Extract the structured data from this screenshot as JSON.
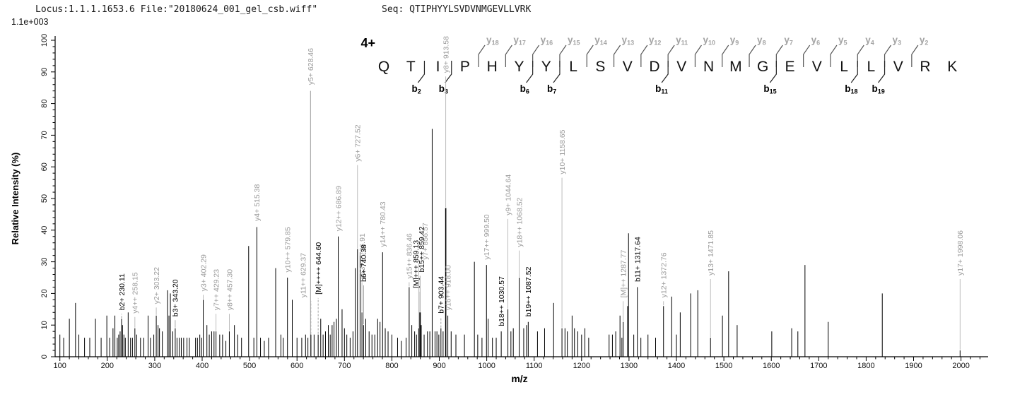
{
  "header": {
    "locus_file": "Locus:1.1.1.1653.6 File:\"20180624_001_gel_csb.wiff\"",
    "seq": "Seq: QTIPHYYLSVDVNMGEVLLVRK",
    "max_intensity": "1.1e+003"
  },
  "chart_data": {
    "type": "bar",
    "subtype": "ms2-fragmentation-spectrum",
    "xlabel": "m/z",
    "ylabel": "Relative  Intensity (%)",
    "xlim": [
      90,
      2050
    ],
    "ylim": [
      0,
      100
    ],
    "x_major_tick": 100,
    "x_minor_tick": 20,
    "y_major_tick": 10,
    "y_minor_tick": 2,
    "x_tick_labels": [
      "100",
      "200",
      "300",
      "400",
      "500",
      "600",
      "700",
      "800",
      "900",
      "1000",
      "1100",
      "1200",
      "1300",
      "1400",
      "1500",
      "1600",
      "1700",
      "1800",
      "1900",
      "2000"
    ],
    "y_tick_labels": [
      "0",
      "10",
      "20",
      "30",
      "40",
      "50",
      "60",
      "70",
      "80",
      "90",
      "100"
    ],
    "precursor_charge": "4+",
    "sequence": "QTIPHYYLSVDVNMGEVLLVRK",
    "sequence_y_ions": [
      {
        "ion": "y",
        "num": 18,
        "boundary": 4
      },
      {
        "ion": "y",
        "num": 17,
        "boundary": 5
      },
      {
        "ion": "y",
        "num": 16,
        "boundary": 6
      },
      {
        "ion": "y",
        "num": 15,
        "boundary": 7
      },
      {
        "ion": "y",
        "num": 14,
        "boundary": 8
      },
      {
        "ion": "y",
        "num": 13,
        "boundary": 9
      },
      {
        "ion": "y",
        "num": 12,
        "boundary": 10
      },
      {
        "ion": "y",
        "num": 11,
        "boundary": 11
      },
      {
        "ion": "y",
        "num": 10,
        "boundary": 12
      },
      {
        "ion": "y",
        "num": 9,
        "boundary": 13
      },
      {
        "ion": "y",
        "num": 8,
        "boundary": 14
      },
      {
        "ion": "y",
        "num": 7,
        "boundary": 15
      },
      {
        "ion": "y",
        "num": 6,
        "boundary": 16
      },
      {
        "ion": "y",
        "num": 5,
        "boundary": 17
      },
      {
        "ion": "y",
        "num": 4,
        "boundary": 18
      },
      {
        "ion": "y",
        "num": 3,
        "boundary": 19
      },
      {
        "ion": "y",
        "num": 2,
        "boundary": 20
      }
    ],
    "sequence_b_ions": [
      {
        "ion": "b",
        "num": 2,
        "boundary": 2
      },
      {
        "ion": "b",
        "num": 3,
        "boundary": 3
      },
      {
        "ion": "b",
        "num": 6,
        "boundary": 6
      },
      {
        "ion": "b",
        "num": 7,
        "boundary": 7
      },
      {
        "ion": "b",
        "num": 11,
        "boundary": 11
      },
      {
        "ion": "b",
        "num": 15,
        "boundary": 15
      },
      {
        "ion": "b",
        "num": 18,
        "boundary": 18
      },
      {
        "ion": "b",
        "num": 19,
        "boundary": 19
      }
    ],
    "labeled_peaks": [
      {
        "mz": 230.11,
        "h": 12,
        "label": "b2+ 230.11",
        "color": "black",
        "lp": 14,
        "dash": true
      },
      {
        "mz": 258.15,
        "h": 9,
        "label": "y4++ 258.15",
        "color": "gray",
        "lp": 13
      },
      {
        "mz": 303.22,
        "h": 13,
        "label": "y2+ 303.22",
        "color": "gray",
        "lp": 16
      },
      {
        "mz": 343.2,
        "h": 9,
        "label": "b3+ 343.20",
        "color": "black",
        "lp": 12
      },
      {
        "mz": 402.29,
        "h": 18,
        "label": "y3+ 402.29",
        "color": "gray",
        "lp": 20
      },
      {
        "mz": 429.23,
        "h": 8,
        "label": "y7++ 429.23",
        "color": "gray",
        "lp": 14
      },
      {
        "mz": 457.3,
        "h": 8,
        "label": "y8++ 457.30",
        "color": "gray",
        "lp": 14
      },
      {
        "mz": 515.38,
        "h": 41,
        "label": "y4+ 515.38",
        "color": "gray"
      },
      {
        "mz": 579.85,
        "h": 25,
        "label": "y10++ 579.85",
        "color": "gray",
        "lp": 26
      },
      {
        "mz": 628.46,
        "h": 84,
        "label": "y5+ 628.46",
        "color": "gray",
        "lp": 84,
        "pc": "gray"
      },
      {
        "mz": 629.37,
        "h": 7,
        "label": "y11++ 629.37",
        "color": "gray",
        "lp": 18,
        "dash": true,
        "xoff": -11
      },
      {
        "mz": 644.6,
        "h": 7,
        "label": "[M]++++ 644.60",
        "color": "black",
        "lp": 19,
        "dash": true
      },
      {
        "mz": 686.89,
        "h": 38,
        "label": "y12++ 686.89",
        "color": "gray",
        "lp": 39
      },
      {
        "mz": 727.52,
        "h": 34,
        "label": "y6+ 727.52",
        "color": "gray",
        "lp": 61
      },
      {
        "mz": 736.91,
        "h": 14,
        "label": "y13++ 736.91",
        "color": "gray",
        "lp": 24
      },
      {
        "mz": 740.38,
        "h": 10,
        "label": "b6+ 740.38",
        "color": "black",
        "lp": 23
      },
      {
        "mz": 780.43,
        "h": 33,
        "label": "y14++ 780.43",
        "color": "gray",
        "lp": 34
      },
      {
        "mz": 836.46,
        "h": 22,
        "label": "y15++ 836.46",
        "color": "gray",
        "lp": 24
      },
      {
        "mz": 859.13,
        "h": 13,
        "label": "[M]+++ 859.13",
        "color": "black",
        "lp": 21,
        "xoff": -6
      },
      {
        "mz": 859.42,
        "h": 14,
        "label": "b15++ 859.42",
        "color": "black",
        "lp": 26,
        "w": 2,
        "xoff": 2
      },
      {
        "mz": 856.57,
        "h": 9,
        "label": "y7+ 856.57",
        "color": "gray",
        "lp": 30,
        "xoff": 9
      },
      {
        "mz": 903.44,
        "h": 9,
        "label": "b7+ 903.44",
        "color": "black",
        "lp": 13,
        "dash": true
      },
      {
        "mz": 913.58,
        "h": 47,
        "label": "y8+ 913.58",
        "color": "gray",
        "lp": 89,
        "w": 1.6
      },
      {
        "mz": 918.0,
        "h": 13,
        "label": "y16++ 918.00",
        "color": "gray",
        "lp": 14
      },
      {
        "mz": 999.5,
        "h": 29,
        "label": "y17++ 999.50",
        "color": "gray",
        "lp": 30
      },
      {
        "mz": 1030.57,
        "h": 8,
        "label": "b18++ 1030.57",
        "color": "black",
        "lp": 9
      },
      {
        "mz": 1044.64,
        "h": 15,
        "label": "y9+ 1044.64",
        "color": "gray",
        "lp": 44
      },
      {
        "mz": 1068.52,
        "h": 25,
        "label": "y18++ 1068.52",
        "color": "gray",
        "lp": 34
      },
      {
        "mz": 1087.52,
        "h": 11,
        "label": "b19++ 1087.52",
        "color": "black",
        "lp": 12
      },
      {
        "mz": 1158.65,
        "h": 9,
        "label": "y10+ 1158.65",
        "color": "gray",
        "lp": 57
      },
      {
        "mz": 1287.77,
        "h": 11,
        "label": "[M]++ 1287.77",
        "color": "gray",
        "lp": 18
      },
      {
        "mz": 1317.64,
        "h": 22,
        "label": "b11+ 1317.64",
        "color": "black",
        "lp": 23
      },
      {
        "mz": 1372.76,
        "h": 16,
        "label": "y12+ 1372.76",
        "color": "gray",
        "lp": 18
      },
      {
        "mz": 1471.85,
        "h": 6,
        "label": "y13+ 1471.85",
        "color": "gray",
        "lp": 25
      },
      {
        "mz": 1998.06,
        "h": 2,
        "label": "y17+ 1998.06",
        "color": "gray",
        "lp": 25
      }
    ],
    "unlabeled_peaks": [
      [
        100,
        7
      ],
      [
        108,
        6
      ],
      [
        120,
        12
      ],
      [
        133,
        17
      ],
      [
        140,
        7
      ],
      [
        152,
        6
      ],
      [
        163,
        6
      ],
      [
        175,
        12
      ],
      [
        187,
        6
      ],
      [
        199,
        13
      ],
      [
        205,
        6
      ],
      [
        212,
        9
      ],
      [
        216,
        13
      ],
      [
        221,
        6
      ],
      [
        224,
        7
      ],
      [
        227,
        8
      ],
      [
        232,
        10
      ],
      [
        235,
        7
      ],
      [
        238,
        6
      ],
      [
        244,
        14
      ],
      [
        249,
        6
      ],
      [
        253,
        6
      ],
      [
        262,
        7
      ],
      [
        270,
        6
      ],
      [
        277,
        6
      ],
      [
        286,
        13
      ],
      [
        291,
        6
      ],
      [
        298,
        7
      ],
      [
        307,
        10
      ],
      [
        310,
        9
      ],
      [
        316,
        8
      ],
      [
        327,
        21
      ],
      [
        330,
        13
      ],
      [
        333,
        20
      ],
      [
        338,
        8
      ],
      [
        347,
        6
      ],
      [
        352,
        6
      ],
      [
        356,
        6
      ],
      [
        361,
        6
      ],
      [
        368,
        6
      ],
      [
        373,
        6
      ],
      [
        386,
        6
      ],
      [
        390,
        6
      ],
      [
        395,
        7
      ],
      [
        399,
        6
      ],
      [
        410,
        10
      ],
      [
        415,
        7
      ],
      [
        420,
        8
      ],
      [
        425,
        8
      ],
      [
        437,
        7
      ],
      [
        443,
        7
      ],
      [
        450,
        5
      ],
      [
        468,
        10
      ],
      [
        475,
        7
      ],
      [
        483,
        6
      ],
      [
        498,
        35
      ],
      [
        509,
        6
      ],
      [
        523,
        6
      ],
      [
        531,
        5
      ],
      [
        540,
        6
      ],
      [
        555,
        28
      ],
      [
        566,
        7
      ],
      [
        571,
        6
      ],
      [
        590,
        18
      ],
      [
        600,
        6
      ],
      [
        610,
        6
      ],
      [
        618,
        7
      ],
      [
        623,
        6
      ],
      [
        636,
        7
      ],
      [
        650,
        12
      ],
      [
        655,
        7
      ],
      [
        660,
        8
      ],
      [
        666,
        10
      ],
      [
        670,
        7
      ],
      [
        674,
        10
      ],
      [
        678,
        11
      ],
      [
        683,
        12
      ],
      [
        695,
        15
      ],
      [
        700,
        9
      ],
      [
        705,
        7
      ],
      [
        712,
        6
      ],
      [
        718,
        8
      ],
      [
        723,
        28
      ],
      [
        733,
        33
      ],
      [
        745,
        12
      ],
      [
        752,
        8
      ],
      [
        758,
        7
      ],
      [
        764,
        7
      ],
      [
        770,
        12
      ],
      [
        775,
        11
      ],
      [
        786,
        9
      ],
      [
        792,
        8
      ],
      [
        800,
        7
      ],
      [
        812,
        6
      ],
      [
        820,
        5
      ],
      [
        830,
        6
      ],
      [
        842,
        10
      ],
      [
        848,
        8
      ],
      [
        852,
        7
      ],
      [
        862,
        10
      ],
      [
        868,
        7
      ],
      [
        875,
        8
      ],
      [
        880,
        8
      ],
      [
        885,
        72
      ],
      [
        891,
        8
      ],
      [
        895,
        8
      ],
      [
        899,
        7
      ],
      [
        908,
        8
      ],
      [
        925,
        8
      ],
      [
        935,
        7
      ],
      [
        953,
        7
      ],
      [
        974,
        30
      ],
      [
        981,
        7
      ],
      [
        990,
        6
      ],
      [
        1003,
        12
      ],
      [
        1012,
        6
      ],
      [
        1020,
        6
      ],
      [
        1051,
        8
      ],
      [
        1056,
        9
      ],
      [
        1078,
        9
      ],
      [
        1084,
        10
      ],
      [
        1107,
        8
      ],
      [
        1122,
        9
      ],
      [
        1141,
        17
      ],
      [
        1165,
        9
      ],
      [
        1170,
        8
      ],
      [
        1180,
        13
      ],
      [
        1185,
        9
      ],
      [
        1192,
        8
      ],
      [
        1200,
        7
      ],
      [
        1207,
        9
      ],
      [
        1215,
        6
      ],
      [
        1258,
        7
      ],
      [
        1265,
        7
      ],
      [
        1272,
        8
      ],
      [
        1281,
        13
      ],
      [
        1285,
        6
      ],
      [
        1297,
        16
      ],
      [
        1299,
        39
      ],
      [
        1310,
        7
      ],
      [
        1325,
        6
      ],
      [
        1340,
        7
      ],
      [
        1356,
        6
      ],
      [
        1390,
        19
      ],
      [
        1400,
        7
      ],
      [
        1408,
        14
      ],
      [
        1430,
        20
      ],
      [
        1445,
        21
      ],
      [
        1497,
        13
      ],
      [
        1510,
        27
      ],
      [
        1528,
        10
      ],
      [
        1601,
        8
      ],
      [
        1643,
        9
      ],
      [
        1656,
        8
      ],
      [
        1671,
        29
      ],
      [
        1720,
        11
      ],
      [
        1834,
        20
      ]
    ],
    "colors": {
      "peak": "#000000",
      "gray_label": "#9b9b9b",
      "black_label": "#000000",
      "pointer": "#b5b5b5",
      "axis": "#000000",
      "seq_letter": "#111111",
      "seq_y_label": "#a3a3a3",
      "seq_b_label": "#000000",
      "seq_mark": "#555555"
    }
  }
}
